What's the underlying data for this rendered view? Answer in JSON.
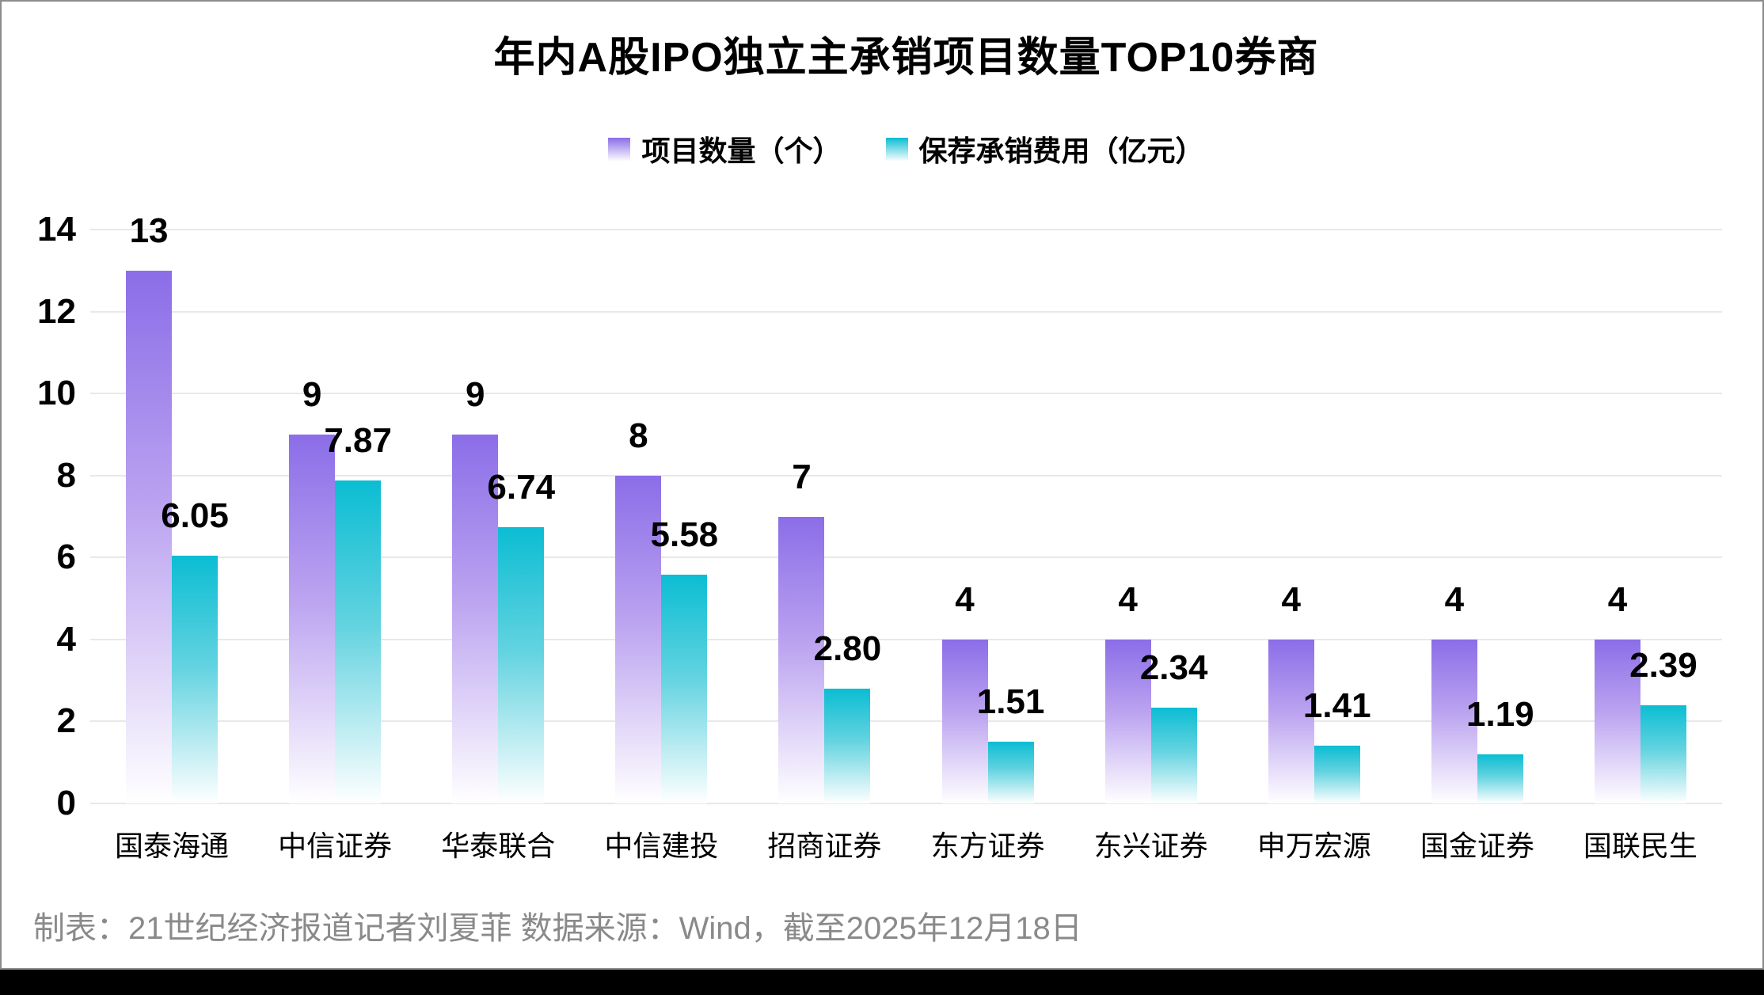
{
  "page": {
    "title": "年内A股IPO独立主承销项目数量TOP10券商",
    "footer": "制表：21世纪经济报道记者刘夏菲 数据来源：Wind，截至2025年12月18日"
  },
  "legend": [
    {
      "label": "项目数量（个）",
      "color": "#8B6DE8"
    },
    {
      "label": "保荐承销费用（亿元）",
      "color": "#0BBDD3"
    }
  ],
  "chart_data": {
    "type": "bar",
    "title": "年内A股IPO独立主承销项目数量TOP10券商",
    "categories": [
      "国泰海通",
      "中信证券",
      "华泰联合",
      "中信建投",
      "招商证券",
      "东方证券",
      "东兴证券",
      "申万宏源",
      "国金证券",
      "国联民生"
    ],
    "series": [
      {
        "name": "项目数量（个）",
        "color": "#8B6DE8",
        "color_mid": "#BCA4F0",
        "color_bottom": "#FFFFFF",
        "values": [
          13,
          9,
          9,
          8,
          7,
          4,
          4,
          4,
          4,
          4
        ],
        "labels": [
          "13",
          "9",
          "9",
          "8",
          "7",
          "4",
          "4",
          "4",
          "4",
          "4"
        ]
      },
      {
        "name": "保荐承销费用（亿元）",
        "color": "#0BBDD3",
        "color_mid": "#63D3E0",
        "color_bottom": "#FFFFFF",
        "values": [
          6.05,
          7.87,
          6.74,
          5.58,
          2.8,
          1.51,
          2.34,
          1.41,
          1.19,
          2.39
        ],
        "labels": [
          "6.05",
          "7.87",
          "6.74",
          "5.58",
          "2.80",
          "1.51",
          "2.34",
          "1.41",
          "1.19",
          "2.39"
        ]
      }
    ],
    "y_axis": {
      "min": 0,
      "max": 14,
      "ticks": [
        0,
        2,
        4,
        6,
        8,
        10,
        12,
        14
      ]
    },
    "grid": true,
    "legend_position": "top",
    "gridline_color": "#e8e8e8"
  }
}
